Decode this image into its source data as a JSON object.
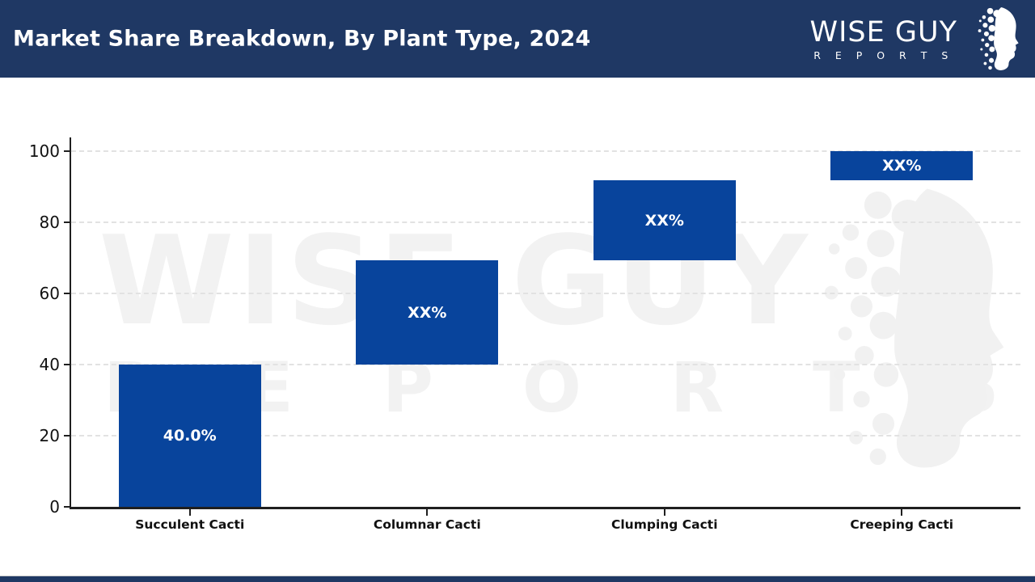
{
  "header": {
    "title": "Market Share Breakdown, By Plant Type, 2024",
    "logo": {
      "line1": "WISE GUY",
      "line2": "R E P O R T S"
    }
  },
  "watermark": {
    "line1": "WISE GUY",
    "line2": "R E P O R T S"
  },
  "colors": {
    "header_bg": "#1f3864",
    "footer_bg": "#1f3864",
    "bar_fill": "#08449c",
    "bar_label_text": "#ffffff",
    "grid_line": "#e2e2e2",
    "axis_line": "#1f1f1f",
    "tick_label_text": "#111111",
    "watermark_text": "#f2f2f2"
  },
  "chart_data": {
    "type": "bar",
    "subtype": "waterfall",
    "title": "Market Share Breakdown, By Plant Type, 2024",
    "categories": [
      "Succulent Cacti",
      "Columnar Cacti",
      "Clumping Cacti",
      "Creeping Cacti"
    ],
    "segments": [
      {
        "category": "Succulent Cacti",
        "start": 0,
        "end": 40,
        "label": "40.0%"
      },
      {
        "category": "Columnar Cacti",
        "start": 40,
        "end": 69.3,
        "label": "XX%"
      },
      {
        "category": "Clumping Cacti",
        "start": 69.3,
        "end": 91.8,
        "label": "XX%"
      },
      {
        "category": "Creeping Cacti",
        "start": 91.8,
        "end": 100,
        "label": "XX%"
      }
    ],
    "xlabel": "",
    "ylabel": "",
    "ylim": [
      0,
      100
    ],
    "yticks": [
      0,
      20,
      40,
      60,
      80,
      100
    ],
    "grid": "horizontal-dashed",
    "legend": "none",
    "bar_width_fraction": 0.6
  }
}
